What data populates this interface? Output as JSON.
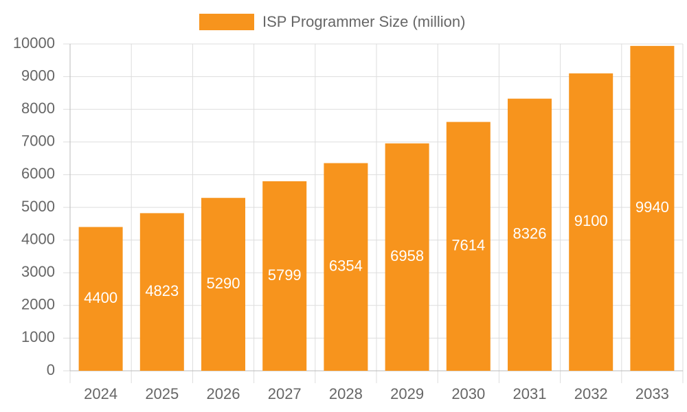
{
  "chart_data": {
    "type": "bar",
    "categories": [
      "2024",
      "2025",
      "2026",
      "2027",
      "2028",
      "2029",
      "2030",
      "2031",
      "2032",
      "2033"
    ],
    "series": [
      {
        "name": "ISP Programmer Size (million)",
        "color": "#f7941d",
        "values": [
          4400,
          4823,
          5290,
          5799,
          6354,
          6958,
          7614,
          8326,
          9100,
          9940
        ]
      }
    ],
    "ylim": [
      0,
      10000
    ],
    "yticks": [
      0,
      1000,
      2000,
      3000,
      4000,
      5000,
      6000,
      7000,
      8000,
      9000,
      10000
    ],
    "grid": true,
    "legend": "top"
  }
}
